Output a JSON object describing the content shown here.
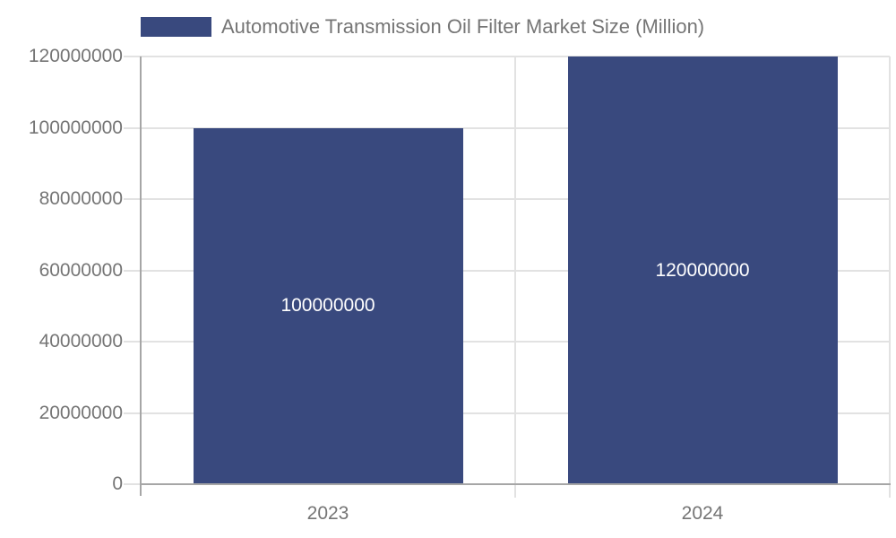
{
  "chart_data": {
    "type": "bar",
    "title": "Automotive Transmission Oil Filter Market Size (Million)",
    "legend": [
      "Automotive Transmission Oil Filter Market Size (Million)"
    ],
    "legend_position": "top",
    "categories": [
      "2023",
      "2024"
    ],
    "values": [
      100000000,
      120000000
    ],
    "bar_labels": [
      "100000000",
      "120000000"
    ],
    "y_ticks": [
      0,
      20000000,
      40000000,
      60000000,
      80000000,
      100000000,
      120000000
    ],
    "y_tick_labels": [
      "0",
      "20000000",
      "40000000",
      "60000000",
      "80000000",
      "100000000",
      "120000000"
    ],
    "ylim": [
      0,
      120000000
    ],
    "xlabel": "",
    "ylabel": "",
    "grid": true,
    "colors": {
      "bar": "#39497E",
      "grid": "#e2e2e2",
      "axis": "#a6a6a6",
      "tick_text": "#757575",
      "bar_label_text": "#ffffff",
      "background": "#ffffff"
    }
  }
}
